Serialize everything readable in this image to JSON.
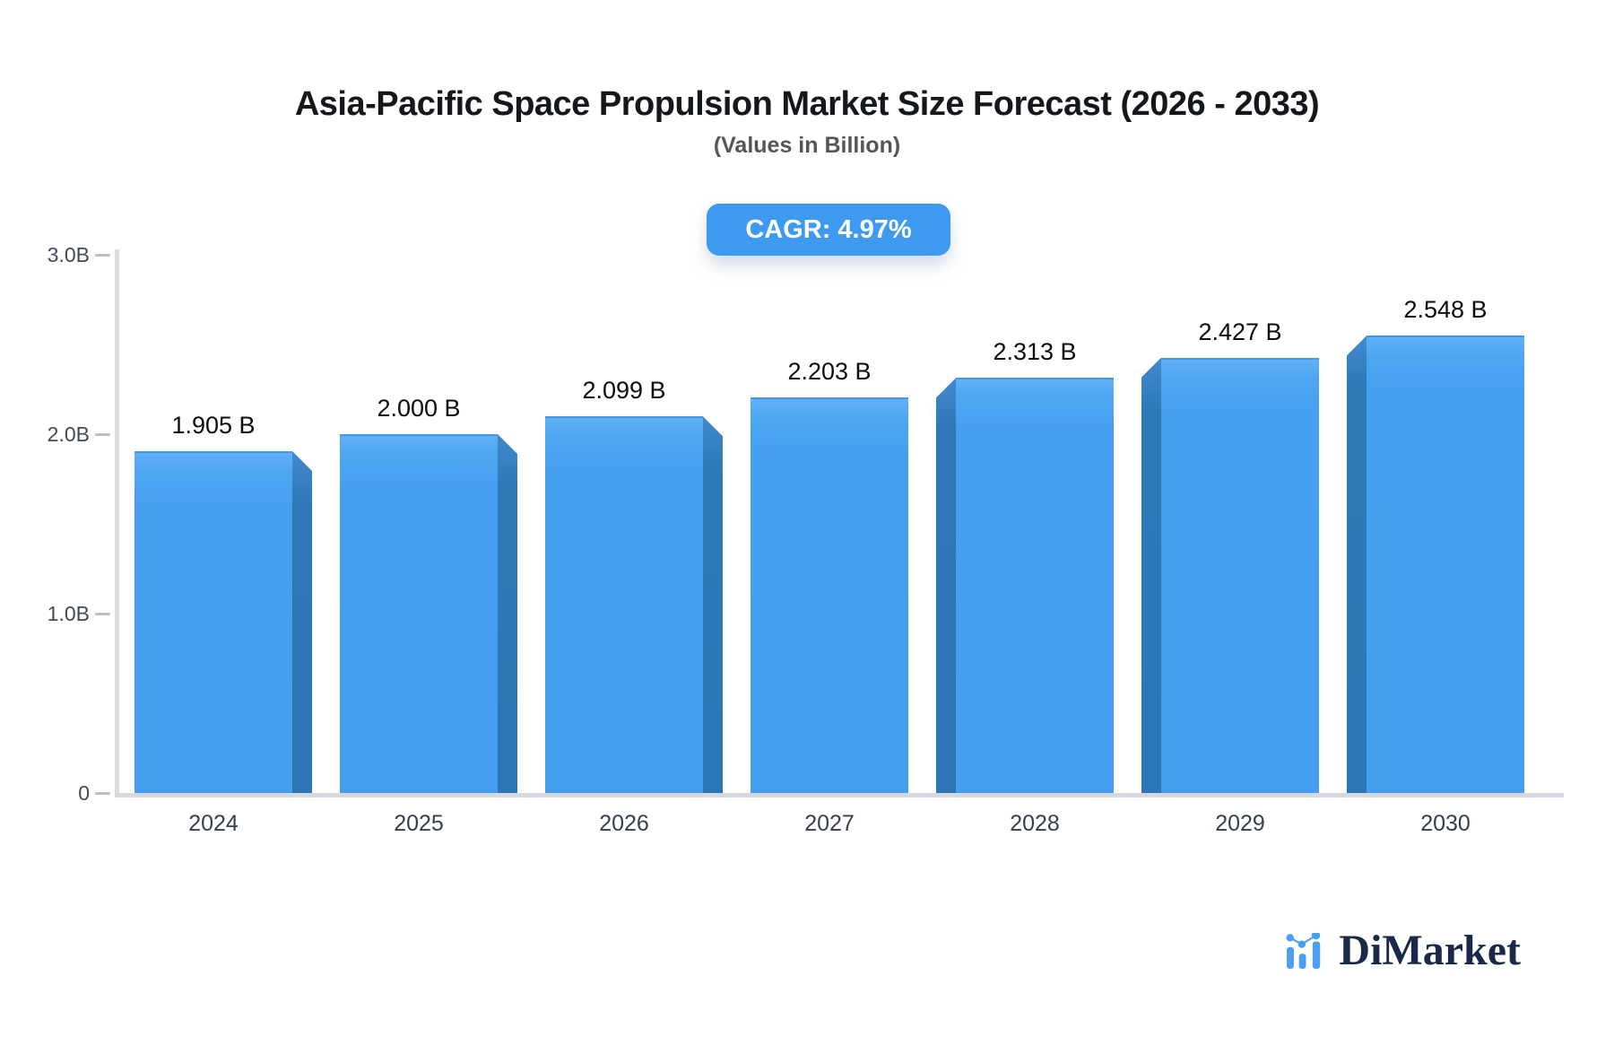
{
  "header": {
    "title": "Asia-Pacific Space Propulsion Market Size Forecast (2026 - 2033)",
    "subtitle": "(Values in Billion)"
  },
  "badge": {
    "label": "CAGR: 4.97%",
    "background": "#3d9af0",
    "text_color": "#ffffff"
  },
  "chart_data": {
    "type": "bar",
    "title": "Asia-Pacific Space Propulsion Market Size Forecast (2026 - 2033)",
    "subtitle": "(Values in Billion)",
    "categories": [
      "2024",
      "2025",
      "2026",
      "2027",
      "2028",
      "2029",
      "2030"
    ],
    "values": [
      1.905,
      2.0,
      2.099,
      2.203,
      2.313,
      2.427,
      2.548
    ],
    "value_labels": [
      "1.905 B",
      "2.000 B",
      "2.099 B",
      "2.203 B",
      "2.313 B",
      "2.427 B",
      "2.548 B"
    ],
    "unit": "Billion",
    "y_ticks": [
      {
        "label": "3.0B",
        "value": 3.0
      },
      {
        "label": "2.0B",
        "value": 2.0
      },
      {
        "label": "1.0B",
        "value": 1.0
      },
      {
        "label": "0",
        "value": 0
      }
    ],
    "ylim": [
      0,
      3.0
    ],
    "grid": false,
    "legend": "none",
    "effect": "3d",
    "bar_face_color": "#47a0ef",
    "bar_top_highlight_color": "#5db0f7",
    "bar_side_color": "#2d76b5"
  },
  "logo": {
    "brand": "DiMarket",
    "icon": "bar-chart-logo-icon",
    "brand_color": "#1a2949",
    "icon_color": "#4a9ff0"
  }
}
